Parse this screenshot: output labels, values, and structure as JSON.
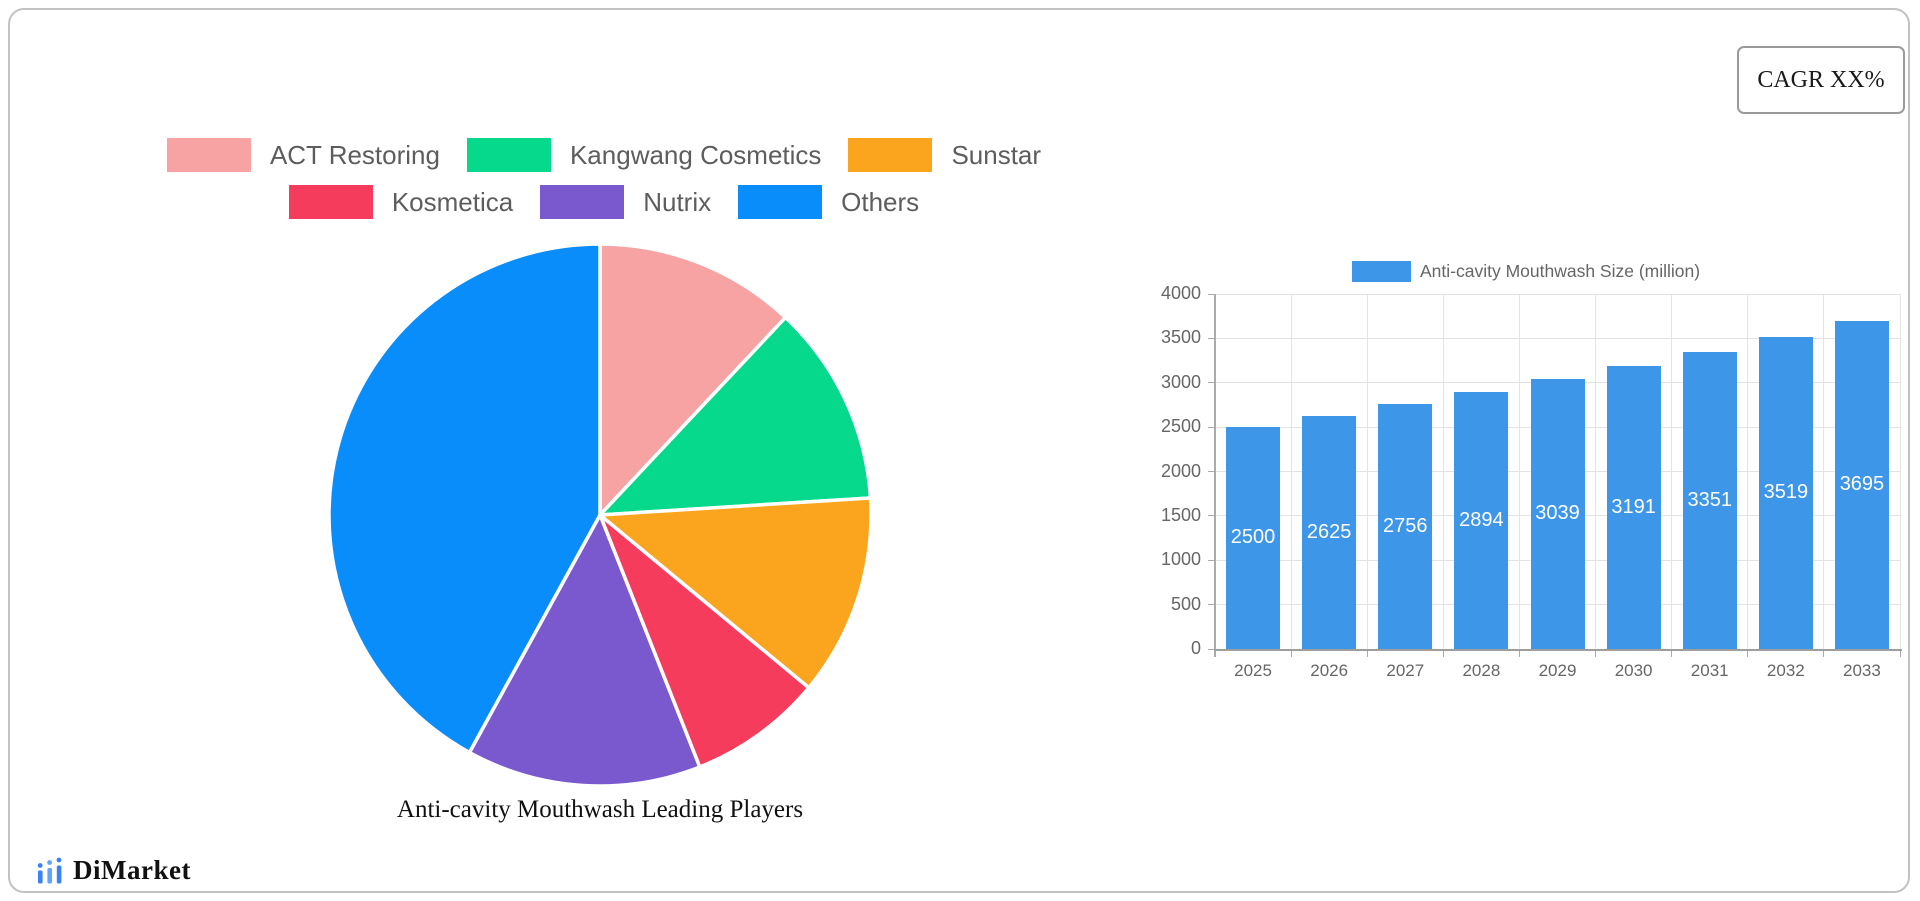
{
  "cagr": {
    "label": "CAGR XX%"
  },
  "logo": {
    "text": "DiMarket",
    "icon": "mini-bar-chart-icon",
    "icon_color": "#3b82f6"
  },
  "chart_data": [
    {
      "type": "pie",
      "title": "Anti-cavity Mouthwash Leading Players",
      "labels": [
        "ACT Restoring",
        "Kangwang Cosmetics",
        "Sunstar",
        "Kosmetica",
        "Nutrix",
        "Others"
      ],
      "values": [
        12,
        12,
        12,
        8,
        14,
        42
      ],
      "colors": [
        "#f7a2a3",
        "#06d98c",
        "#faa51d",
        "#f53c5d",
        "#7a58ce",
        "#098dfb"
      ],
      "start_angle_deg": 0,
      "direction": "clockwise",
      "legend_position": "top",
      "legend_rows": [
        3,
        3
      ]
    },
    {
      "type": "bar",
      "legend": "Anti-cavity Mouthwash Size (million)",
      "categories": [
        "2025",
        "2026",
        "2027",
        "2028",
        "2029",
        "2030",
        "2031",
        "2032",
        "2033"
      ],
      "values": [
        2500,
        2625,
        2756,
        2894,
        3039,
        3191,
        3351,
        3519,
        3695
      ],
      "bar_color": "#3e96e9",
      "value_label_color": "#ffffff",
      "ylim": [
        0,
        4000
      ],
      "yticks": [
        0,
        500,
        1000,
        1500,
        2000,
        2500,
        3000,
        3500,
        4000
      ],
      "grid": true,
      "legend_position": "top"
    }
  ]
}
